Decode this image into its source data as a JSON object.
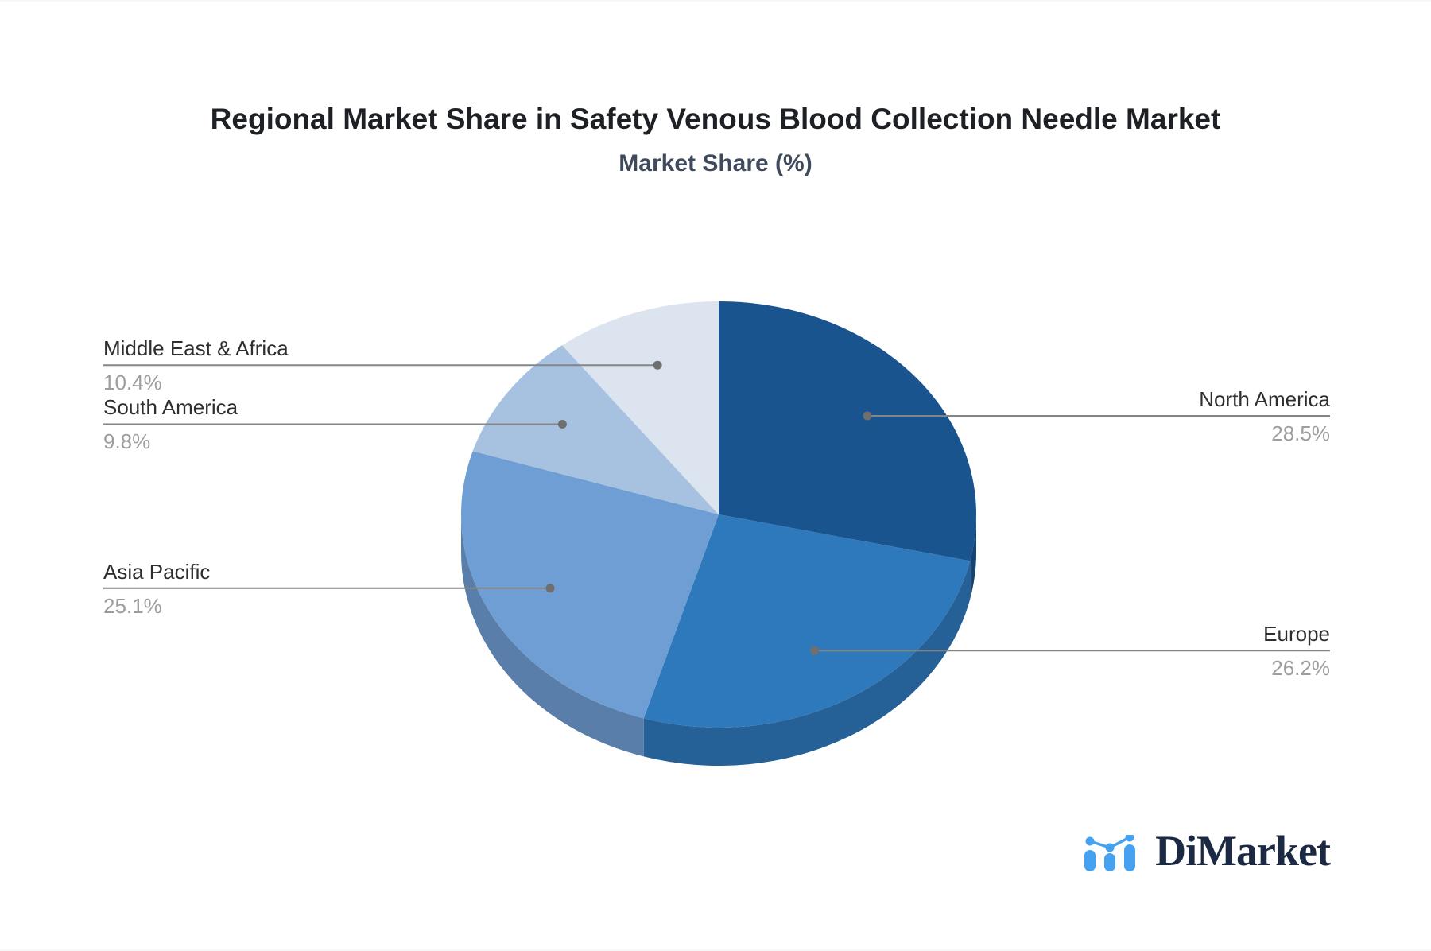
{
  "page": {
    "title": "Regional Market Share in Safety Venous Blood Collection Needle Market",
    "subtitle": "Market Share (%)"
  },
  "logo": {
    "text": "DiMarket",
    "icon": "bar-line-chart-icon",
    "icon_color": "#47a1f1",
    "text_color": "#1b2942"
  },
  "chart_data": {
    "type": "pie",
    "style": "3d",
    "title": "Regional Market Share in Safety Venous Blood Collection Needle Market",
    "subtitle": "Market Share (%)",
    "unit": "%",
    "start_angle_deg": 0,
    "direction": "clockwise",
    "legend_position": "none",
    "categories": [
      "North America",
      "Europe",
      "Asia Pacific",
      "South America",
      "Middle East & Africa"
    ],
    "values": [
      28.5,
      26.2,
      25.1,
      9.8,
      10.4
    ],
    "value_labels": [
      "28.5%",
      "26.2%",
      "25.1%",
      "9.8%",
      "10.4%"
    ],
    "colors": [
      "#1A548F",
      "#2E78BC",
      "#6E9ED3",
      "#A7C2E0",
      "#DCE4EF"
    ],
    "label_name_color": "#2e2e2e",
    "label_value_color": "#9d9d9d",
    "leader_line_color": "#858585",
    "leader_dot_color": "#6f6f6f"
  }
}
